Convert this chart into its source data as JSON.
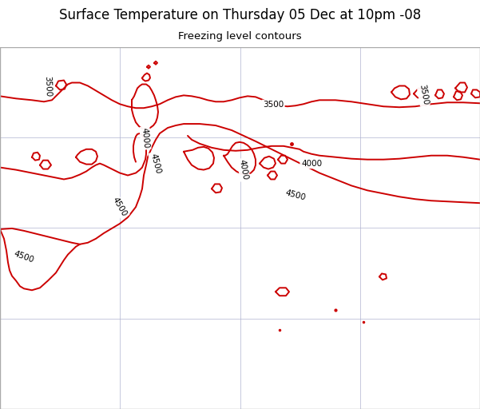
{
  "title": "Surface Temperature on Thursday 05 Dec at 10pm -08",
  "subtitle": "Freezing level contours",
  "title_bg": "#ffffff",
  "map_bg": "#dde0f0",
  "contour_color": "#cc0000",
  "grid_color": "#b0b4d0",
  "border_color": "#aaaaaa",
  "figsize": [
    6.01,
    5.12
  ],
  "dpi": 100,
  "title_fontsize": 12,
  "subtitle_fontsize": 9.5,
  "label_fontsize": 7.5
}
